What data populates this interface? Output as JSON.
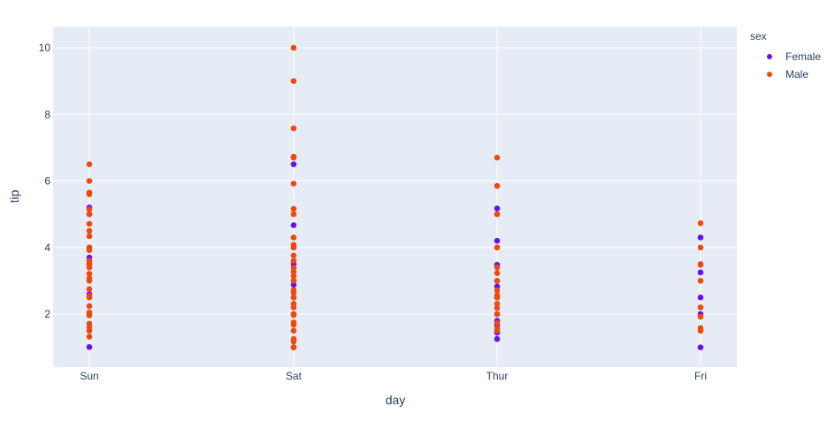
{
  "chart_data": {
    "type": "scatter",
    "title": "",
    "xlabel": "day",
    "ylabel": "tip",
    "categories": [
      "Sun",
      "Sat",
      "Thur",
      "Fri"
    ],
    "yticks": [
      2,
      4,
      6,
      8,
      10
    ],
    "ylim": [
      0.4,
      10.6
    ],
    "grid": true,
    "legend_title": "sex",
    "legend_position": "right",
    "series": [
      {
        "name": "Female",
        "color": "#6c0ff0",
        "points": [
          {
            "x": "Sun",
            "y": 1.01
          },
          {
            "x": "Sun",
            "y": 2.6
          },
          {
            "x": "Sun",
            "y": 3.5
          },
          {
            "x": "Sun",
            "y": 3.7
          },
          {
            "x": "Sun",
            "y": 5.2
          },
          {
            "x": "Sun",
            "y": 5.0
          },
          {
            "x": "Sun",
            "y": 4.0
          },
          {
            "x": "Sat",
            "y": 6.5
          },
          {
            "x": "Sat",
            "y": 4.67
          },
          {
            "x": "Sat",
            "y": 3.5
          },
          {
            "x": "Sat",
            "y": 2.88
          },
          {
            "x": "Sat",
            "y": 3.0
          },
          {
            "x": "Sat",
            "y": 2.5
          },
          {
            "x": "Sat",
            "y": 1.0
          },
          {
            "x": "Sat",
            "y": 2.0
          },
          {
            "x": "Sat",
            "y": 4.0
          },
          {
            "x": "Thur",
            "y": 5.17
          },
          {
            "x": "Thur",
            "y": 4.2
          },
          {
            "x": "Thur",
            "y": 3.48
          },
          {
            "x": "Thur",
            "y": 3.0
          },
          {
            "x": "Thur",
            "y": 2.83
          },
          {
            "x": "Thur",
            "y": 2.0
          },
          {
            "x": "Thur",
            "y": 1.8
          },
          {
            "x": "Thur",
            "y": 1.66
          },
          {
            "x": "Thur",
            "y": 1.44
          },
          {
            "x": "Thur",
            "y": 1.25
          },
          {
            "x": "Thur",
            "y": 2.5
          },
          {
            "x": "Fri",
            "y": 4.3
          },
          {
            "x": "Fri",
            "y": 3.25
          },
          {
            "x": "Fri",
            "y": 2.5
          },
          {
            "x": "Fri",
            "y": 2.0
          },
          {
            "x": "Fri",
            "y": 1.0
          }
        ]
      },
      {
        "name": "Male",
        "color": "#ef4a0b",
        "points": [
          {
            "x": "Sun",
            "y": 6.5
          },
          {
            "x": "Sun",
            "y": 6.0
          },
          {
            "x": "Sun",
            "y": 5.65
          },
          {
            "x": "Sun",
            "y": 5.6
          },
          {
            "x": "Sun",
            "y": 5.15
          },
          {
            "x": "Sun",
            "y": 5.0
          },
          {
            "x": "Sun",
            "y": 4.71
          },
          {
            "x": "Sun",
            "y": 4.5
          },
          {
            "x": "Sun",
            "y": 4.34
          },
          {
            "x": "Sun",
            "y": 4.0
          },
          {
            "x": "Sun",
            "y": 3.92
          },
          {
            "x": "Sun",
            "y": 3.6
          },
          {
            "x": "Sun",
            "y": 3.5
          },
          {
            "x": "Sun",
            "y": 3.4
          },
          {
            "x": "Sun",
            "y": 3.21
          },
          {
            "x": "Sun",
            "y": 3.07
          },
          {
            "x": "Sun",
            "y": 3.0
          },
          {
            "x": "Sun",
            "y": 2.75
          },
          {
            "x": "Sun",
            "y": 2.55
          },
          {
            "x": "Sun",
            "y": 2.5
          },
          {
            "x": "Sun",
            "y": 2.24
          },
          {
            "x": "Sun",
            "y": 2.05
          },
          {
            "x": "Sun",
            "y": 2.0
          },
          {
            "x": "Sun",
            "y": 1.96
          },
          {
            "x": "Sun",
            "y": 1.71
          },
          {
            "x": "Sun",
            "y": 1.6
          },
          {
            "x": "Sun",
            "y": 1.5
          },
          {
            "x": "Sun",
            "y": 1.32
          },
          {
            "x": "Sat",
            "y": 10.0
          },
          {
            "x": "Sat",
            "y": 9.0
          },
          {
            "x": "Sat",
            "y": 7.58
          },
          {
            "x": "Sat",
            "y": 6.73
          },
          {
            "x": "Sat",
            "y": 6.7
          },
          {
            "x": "Sat",
            "y": 5.92
          },
          {
            "x": "Sat",
            "y": 5.16
          },
          {
            "x": "Sat",
            "y": 5.0
          },
          {
            "x": "Sat",
            "y": 4.3
          },
          {
            "x": "Sat",
            "y": 4.08
          },
          {
            "x": "Sat",
            "y": 4.0
          },
          {
            "x": "Sat",
            "y": 3.76
          },
          {
            "x": "Sat",
            "y": 3.6
          },
          {
            "x": "Sat",
            "y": 3.39
          },
          {
            "x": "Sat",
            "y": 3.27
          },
          {
            "x": "Sat",
            "y": 3.15
          },
          {
            "x": "Sat",
            "y": 3.0
          },
          {
            "x": "Sat",
            "y": 2.72
          },
          {
            "x": "Sat",
            "y": 2.64
          },
          {
            "x": "Sat",
            "y": 2.5
          },
          {
            "x": "Sat",
            "y": 2.31
          },
          {
            "x": "Sat",
            "y": 2.2
          },
          {
            "x": "Sat",
            "y": 2.0
          },
          {
            "x": "Sat",
            "y": 1.97
          },
          {
            "x": "Sat",
            "y": 1.75
          },
          {
            "x": "Sat",
            "y": 1.68
          },
          {
            "x": "Sat",
            "y": 1.5
          },
          {
            "x": "Sat",
            "y": 1.25
          },
          {
            "x": "Sat",
            "y": 1.17
          },
          {
            "x": "Sat",
            "y": 1.0
          },
          {
            "x": "Thur",
            "y": 6.7
          },
          {
            "x": "Thur",
            "y": 5.85
          },
          {
            "x": "Thur",
            "y": 5.0
          },
          {
            "x": "Thur",
            "y": 4.0
          },
          {
            "x": "Thur",
            "y": 3.4
          },
          {
            "x": "Thur",
            "y": 3.23
          },
          {
            "x": "Thur",
            "y": 3.0
          },
          {
            "x": "Thur",
            "y": 2.71
          },
          {
            "x": "Thur",
            "y": 2.56
          },
          {
            "x": "Thur",
            "y": 2.5
          },
          {
            "x": "Thur",
            "y": 2.31
          },
          {
            "x": "Thur",
            "y": 2.18
          },
          {
            "x": "Thur",
            "y": 2.0
          },
          {
            "x": "Thur",
            "y": 1.73
          },
          {
            "x": "Thur",
            "y": 1.56
          },
          {
            "x": "Thur",
            "y": 1.5
          },
          {
            "x": "Fri",
            "y": 4.73
          },
          {
            "x": "Fri",
            "y": 4.0
          },
          {
            "x": "Fri",
            "y": 3.5
          },
          {
            "x": "Fri",
            "y": 3.48
          },
          {
            "x": "Fri",
            "y": 3.0
          },
          {
            "x": "Fri",
            "y": 2.2
          },
          {
            "x": "Fri",
            "y": 1.92
          },
          {
            "x": "Fri",
            "y": 1.58
          },
          {
            "x": "Fri",
            "y": 1.5
          }
        ]
      }
    ]
  },
  "legend": {
    "title": "sex",
    "items": [
      {
        "label": "Female",
        "color": "#6c0ff0"
      },
      {
        "label": "Male",
        "color": "#ef4a0b"
      }
    ]
  }
}
